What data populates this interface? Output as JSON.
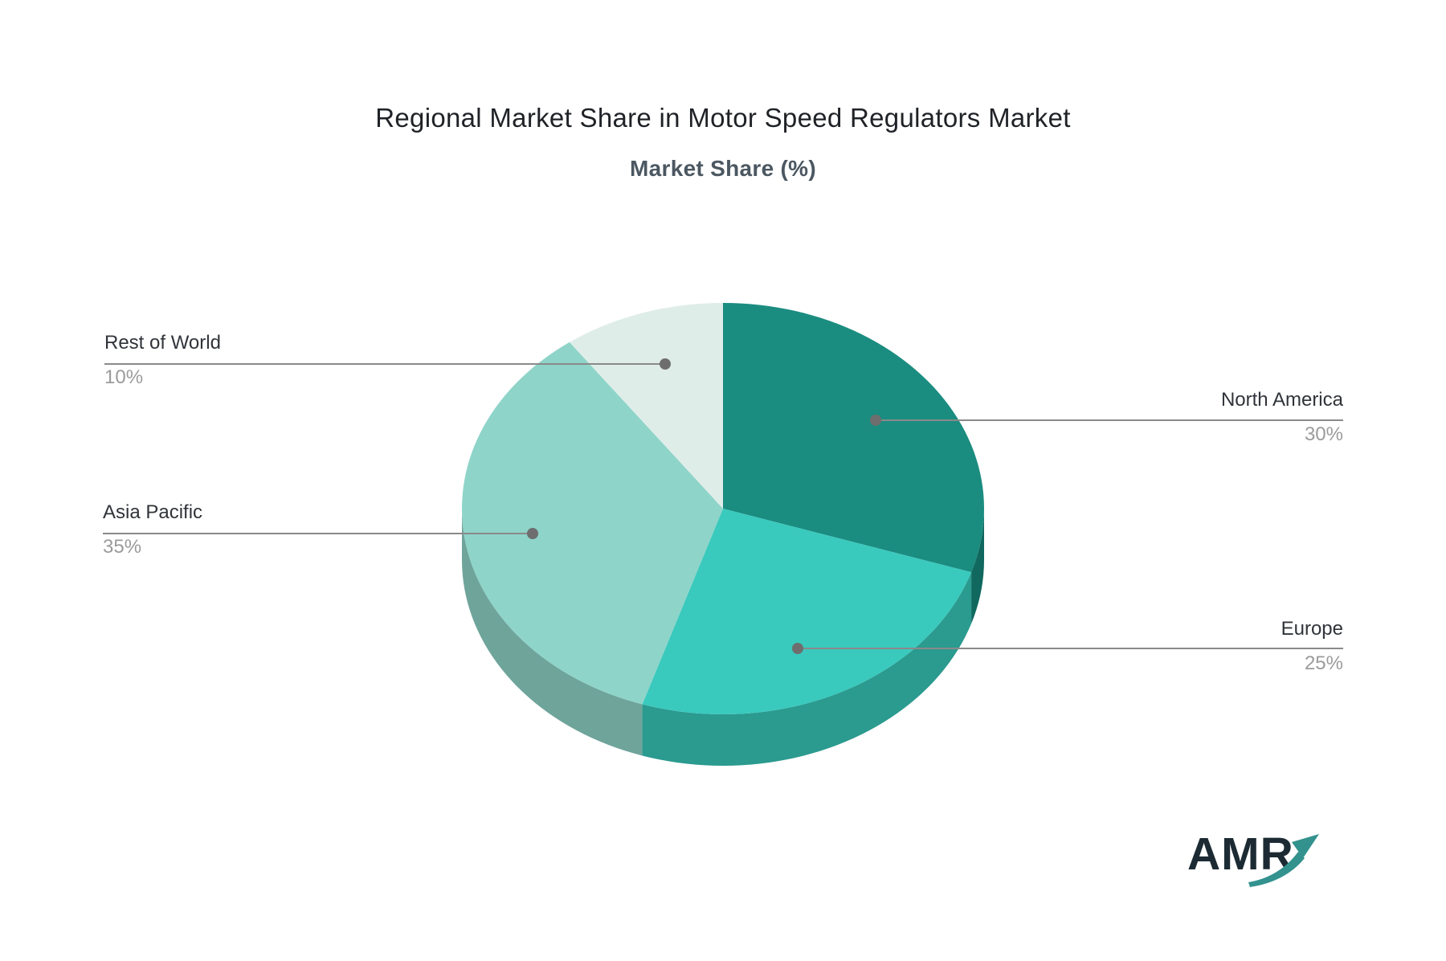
{
  "chart_data": {
    "type": "pie",
    "title": "Regional Market Share in Motor Speed Regulators Market",
    "subtitle": "Market Share (%)",
    "unit": "%",
    "style": "3d-pie",
    "direction": "clockwise",
    "start_angle_deg": 0,
    "legend_position": "leader-lines",
    "slices": [
      {
        "label": "North America",
        "value": 30,
        "display": "30%",
        "color": "#1b8c80",
        "side_color": "#10685f",
        "label_side": "right"
      },
      {
        "label": "Europe",
        "value": 25,
        "display": "25%",
        "color": "#3ac9bd",
        "side_color": "#2b9a8f",
        "label_side": "right"
      },
      {
        "label": "Asia Pacific",
        "value": 35,
        "display": "35%",
        "color": "#8ed4c9",
        "side_color": "#6fa49b",
        "label_side": "left"
      },
      {
        "label": "Rest of World",
        "value": 10,
        "display": "10%",
        "color": "#dfede9",
        "side_color": "#b9cdc8",
        "label_side": "left"
      }
    ],
    "label_text_color": "#30343a",
    "pct_text_color": "#9b9b9b",
    "leader_line_color": "#8a8a8a",
    "leader_dot_color": "#6e6e6e"
  },
  "logo": {
    "text": "AMR",
    "accent_color": "#33928e"
  }
}
